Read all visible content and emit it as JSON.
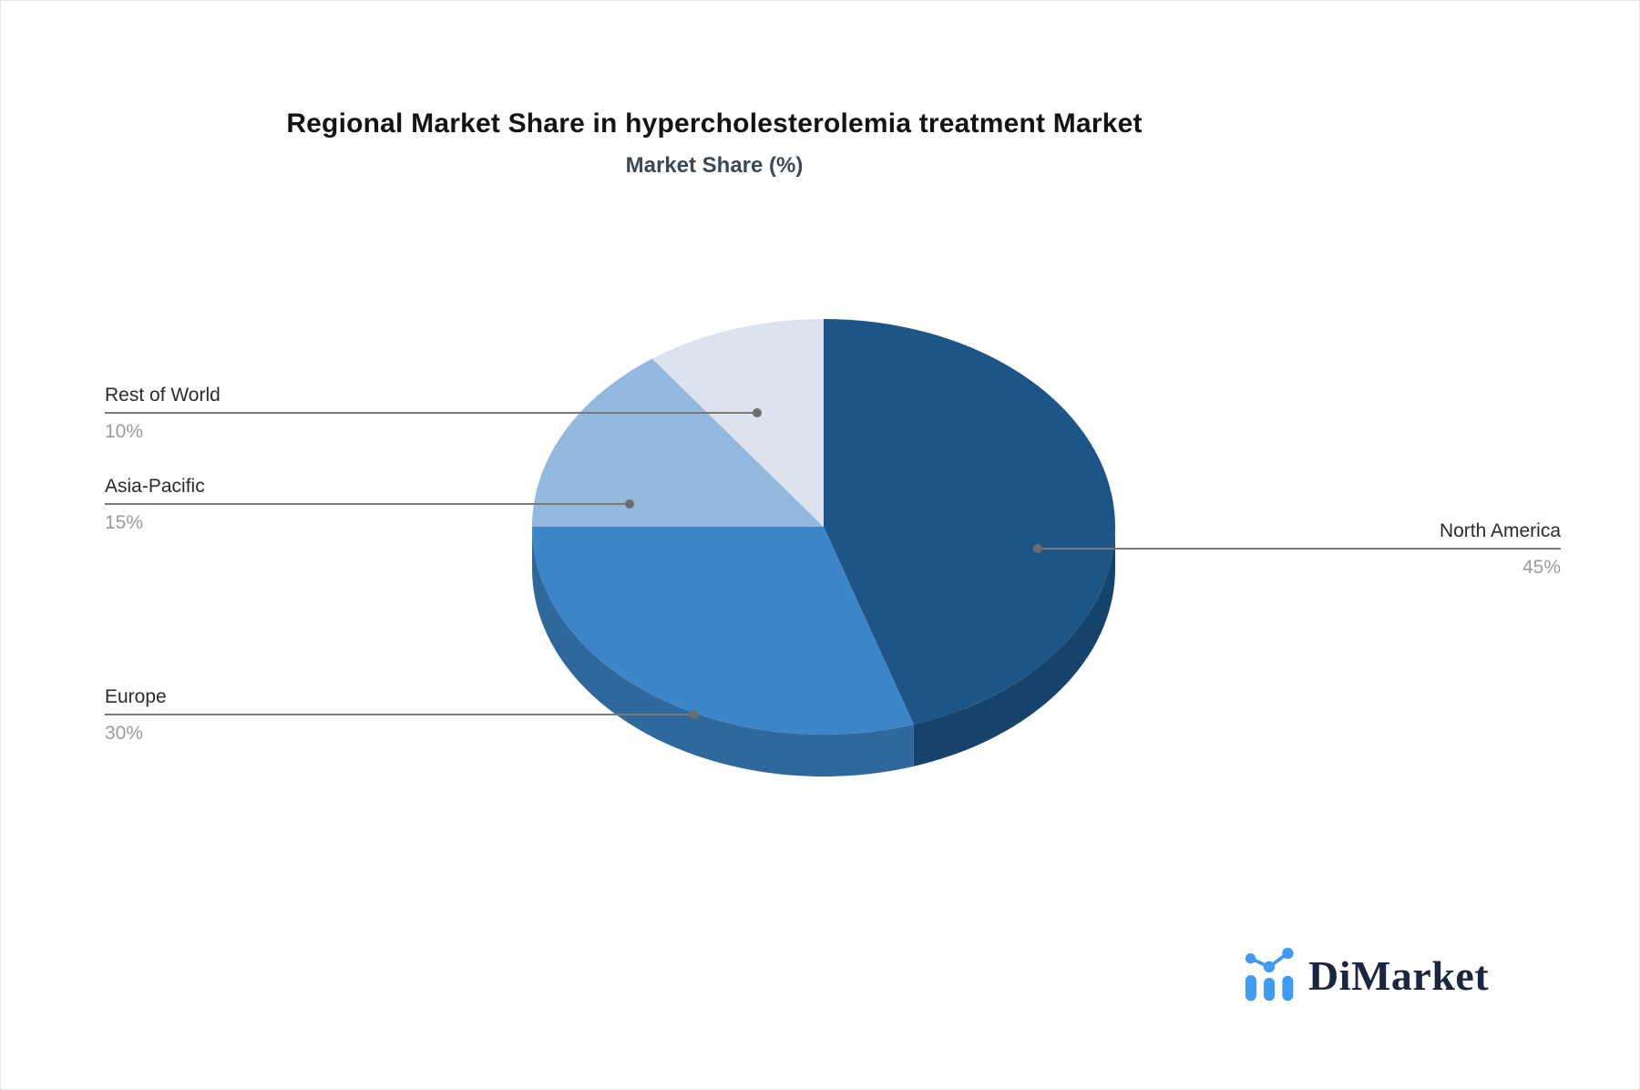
{
  "page": {
    "background": "#ffffff"
  },
  "chart_data": {
    "type": "pie",
    "title": "Regional Market Share in hypercholesterolemia treatment Market",
    "subtitle": "Market Share (%)",
    "effect": "3d",
    "start_angle_deg": 0,
    "direction": "clockwise",
    "legend_position": "none",
    "label_style": "callout leader lines, region name above line, percent below",
    "slices": [
      {
        "label": "North America",
        "value": 45,
        "pct_label": "45%",
        "color": "#1d5587",
        "side_color": "#16436b",
        "label_side": "right"
      },
      {
        "label": "Europe",
        "value": 30,
        "pct_label": "30%",
        "color": "#3c86c8",
        "side_color": "#2f689c",
        "label_side": "left"
      },
      {
        "label": "Asia-Pacific",
        "value": 15,
        "pct_label": "15%",
        "color": "#93b9de",
        "side_color": "#7fa5cb",
        "label_side": "left"
      },
      {
        "label": "Rest of World",
        "value": 10,
        "pct_label": "10%",
        "color": "#dce3ef",
        "side_color": "#c2cfe2",
        "label_side": "left"
      }
    ],
    "colors": {
      "title": "#141414",
      "subtitle": "#3d4854",
      "label_name": "#2b2b2b",
      "label_value": "#9b9b9b",
      "leader_line": "#7a7a7a",
      "leader_dot": "#6d6d6d"
    }
  },
  "branding": {
    "logo_text": "DiMarket",
    "logo_text_color": "#1b2740",
    "logo_icon": "bar-line-chart-icon",
    "logo_icon_color": "#3f9af2"
  }
}
